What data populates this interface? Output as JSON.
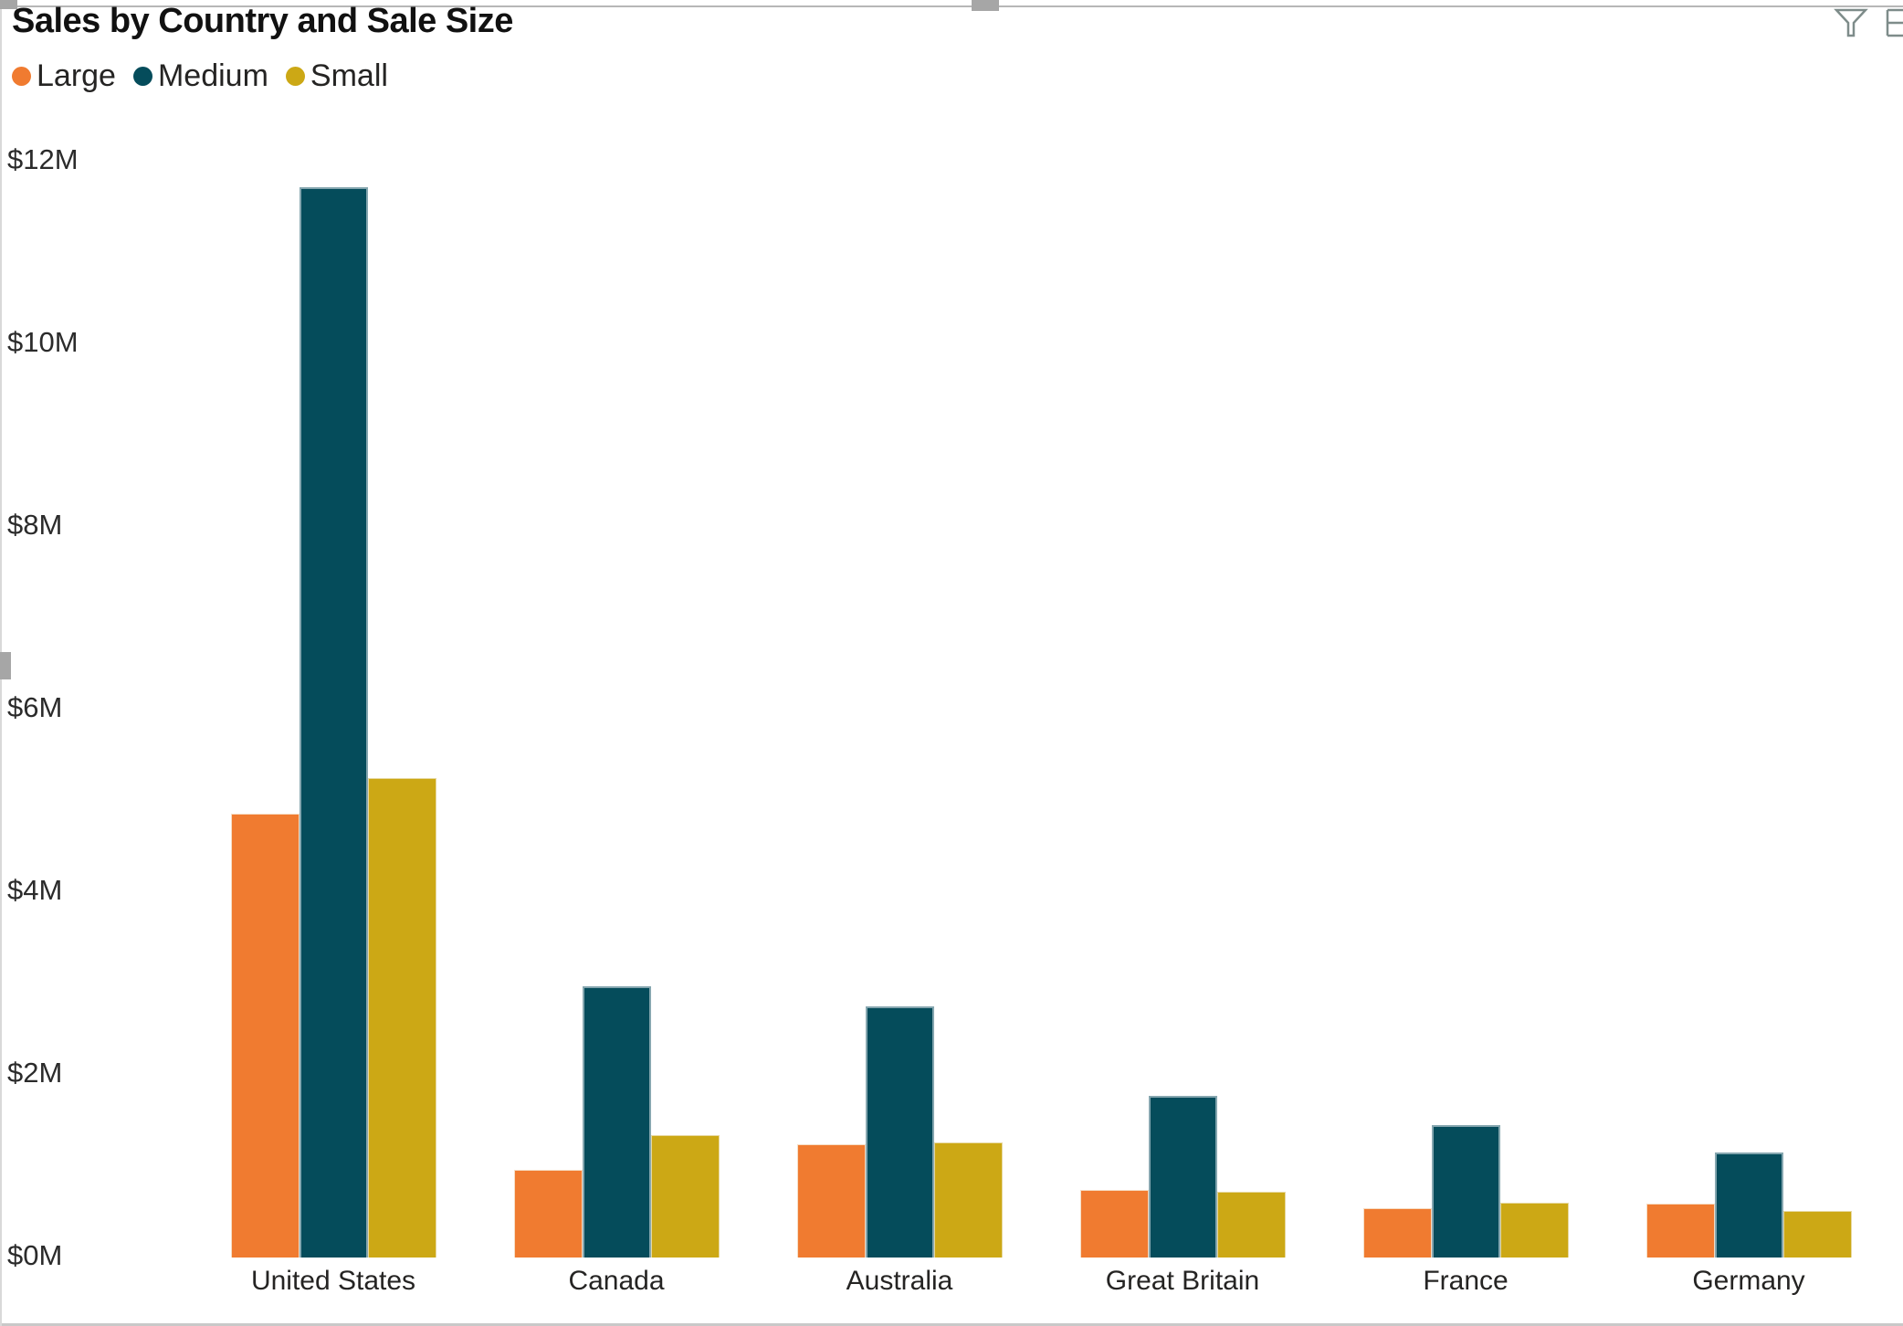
{
  "visual": {
    "title": "Sales by Country and Sale Size"
  },
  "legend": {
    "position": "top-left",
    "items": [
      {
        "label": "Large",
        "color": "#F07B30"
      },
      {
        "label": "Medium",
        "color": "#054C5B"
      },
      {
        "label": "Small",
        "color": "#CCA815"
      }
    ]
  },
  "chart_data": {
    "type": "bar",
    "title": "Sales by Country and Sale Size",
    "categories": [
      "United States",
      "Canada",
      "Australia",
      "Great Britain",
      "France",
      "Germany"
    ],
    "series": [
      {
        "name": "Large",
        "color": "#F07B30",
        "values": [
          4.86,
          0.96,
          1.24,
          0.74,
          0.54,
          0.59
        ]
      },
      {
        "name": "Medium",
        "color": "#054C5B",
        "values": [
          11.72,
          2.97,
          2.75,
          1.77,
          1.45,
          1.15
        ]
      },
      {
        "name": "Small",
        "color": "#CCA815",
        "values": [
          5.25,
          1.34,
          1.26,
          0.72,
          0.6,
          0.51
        ]
      }
    ],
    "value_format": "$#M",
    "ylim": [
      0,
      12
    ],
    "y_tick_step": 2,
    "y_tick_labels": [
      "$0M",
      "$2M",
      "$4M",
      "$6M",
      "$8M",
      "$10M",
      "$12M"
    ],
    "grid": false,
    "legend_position": "top-left"
  },
  "chrome": {
    "handle_color": "#A6A6A6",
    "border_color": "#C8C8C8",
    "icon_color": "#7E8C8A"
  }
}
